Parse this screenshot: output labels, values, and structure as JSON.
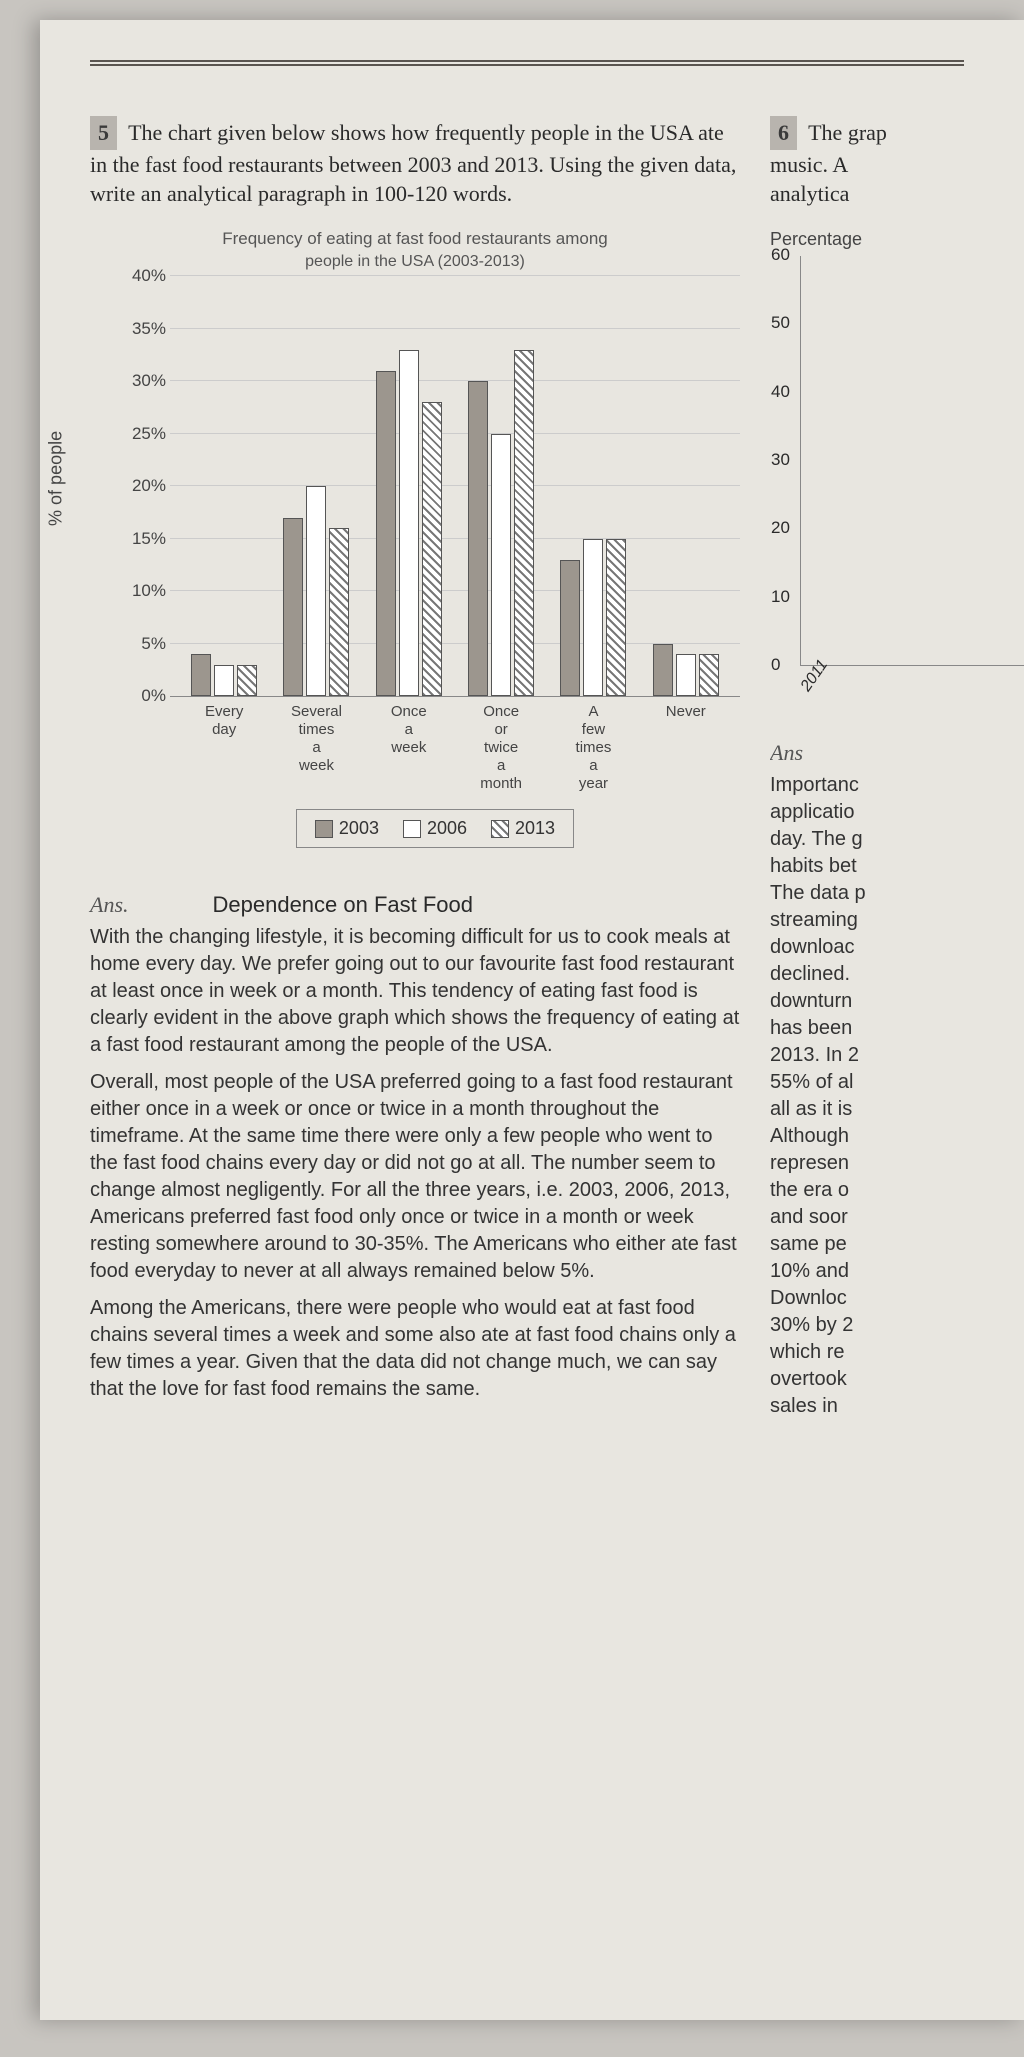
{
  "q5": {
    "number": "5",
    "text": "The chart given below shows how frequently people in the USA ate in the fast food restaurants between 2003 and 2013. Using the given data, write an analytical paragraph in 100-120 words.",
    "chart": {
      "type": "bar",
      "title": "Frequency of eating at fast food restaurants among",
      "subtitle": "people in the USA (2003-2013)",
      "ylabel": "% of people",
      "ylim": [
        0,
        40
      ],
      "ytick_step": 5,
      "yticks": [
        "0%",
        "5%",
        "10%",
        "15%",
        "20%",
        "25%",
        "30%",
        "35%",
        "40%"
      ],
      "categories": [
        "Every day",
        "Several times a week",
        "Once a week",
        "Once or twice a month",
        "A few times a year",
        "Never"
      ],
      "series": [
        {
          "name": "2003",
          "color": "#9c968e",
          "pattern": "solid",
          "values": [
            4,
            17,
            31,
            30,
            13,
            5
          ]
        },
        {
          "name": "2006",
          "color": "#ffffff",
          "pattern": "solid",
          "values": [
            3,
            20,
            33,
            25,
            15,
            4
          ]
        },
        {
          "name": "2013",
          "color": "#ffffff",
          "pattern": "hatch",
          "values": [
            3,
            16,
            28,
            33,
            15,
            4
          ]
        }
      ],
      "legend": [
        "2003",
        "2006",
        "2013"
      ],
      "grid_color": "#cccccc",
      "bar_border": "#555555"
    },
    "ans_label": "Ans.",
    "ans_title": "Dependence on Fast Food",
    "ans_paragraphs": [
      "With the changing lifestyle, it is becoming difficult for us to cook meals at home every day. We prefer going out to our favourite fast food restaurant at least once in week or a month. This tendency of eating fast food is clearly evident in the above graph which shows the frequency of eating at a fast food restaurant among the people of the USA.",
      "Overall, most people of the USA preferred going to a fast food restaurant either once in a week or once or twice in a month throughout the timeframe. At the same time there were only a few people who went to the fast food chains every day or did not go at all. The number seem to change almost negligently. For all the three years, i.e. 2003, 2006, 2013, Americans preferred fast food only once or twice in a month or week resting somewhere around to 30-35%. The Americans who either ate fast food everyday to never at all always remained below 5%.",
      "Among the Americans, there were people who would eat at fast food chains several times a week and some also ate at fast food chains only a few times a year. Given that the data did not change much, we can say that the love for fast food remains the same."
    ]
  },
  "q6": {
    "number": "6",
    "text_lines": [
      "The grap",
      "music. A",
      "analytica"
    ],
    "chart": {
      "title": "Percentage",
      "ylim": [
        0,
        60
      ],
      "ytick_step": 10,
      "yticks": [
        "0",
        "10",
        "20",
        "30",
        "40",
        "50",
        "60"
      ],
      "xlabel_partial": "2011"
    },
    "ans_label": "Ans",
    "ans_lines": [
      "Importanc",
      "applicatio",
      "day. The g",
      "habits bet",
      "The data p",
      "streaming",
      "downloac",
      "declined.",
      "downturn",
      "has been",
      "2013. In 2",
      "55% of al",
      "all as it is",
      "Although",
      "represen",
      "the era o",
      "and soor",
      "same pe",
      "10% and",
      "Downloc",
      "30% by 2",
      "which re",
      "overtook",
      "sales in"
    ]
  }
}
